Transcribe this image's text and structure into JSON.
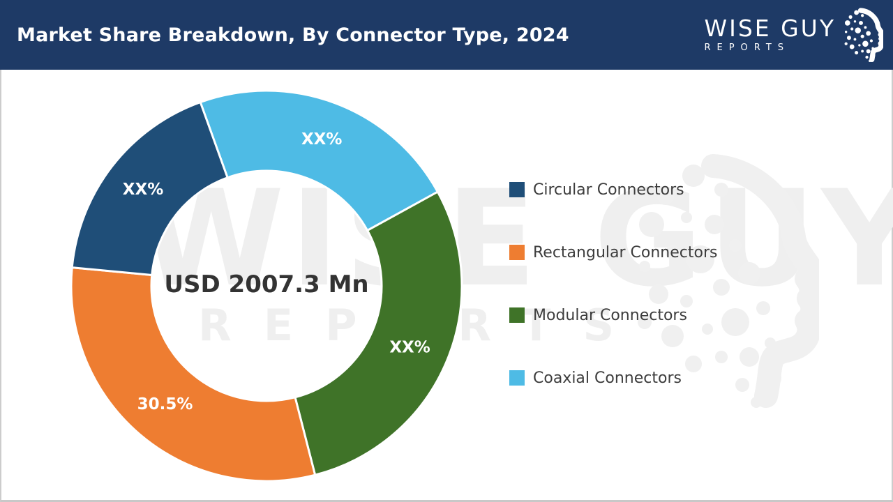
{
  "header": {
    "title": "Market Share Breakdown, By Connector Type, 2024",
    "logo": {
      "line1": "WISE GUY",
      "line2": "REPORTS"
    }
  },
  "watermark": {
    "line1": "WISE GUY",
    "line2": "REPORTS"
  },
  "chart_data": {
    "type": "pie",
    "subtype": "donut",
    "title": "Market Share Breakdown, By Connector Type, 2024",
    "center_label": "USD 2007.3 Mn",
    "start_angle_deg": -19.8,
    "legend_position": "right",
    "segments": [
      {
        "name": "Coaxial Connectors",
        "value": 22.5,
        "display_label": "XX%",
        "color": "#4EBBE5"
      },
      {
        "name": "Modular Connectors",
        "value": 29.0,
        "display_label": "XX%",
        "color": "#3F7328"
      },
      {
        "name": "Rectangular Connectors",
        "value": 30.5,
        "display_label": "30.5%",
        "color": "#EE7D31"
      },
      {
        "name": "Circular Connectors",
        "value": 18.0,
        "display_label": "XX%",
        "color": "#1F4E78"
      }
    ]
  },
  "legend": {
    "items": [
      {
        "label": "Circular Connectors",
        "color": "#1F4E78"
      },
      {
        "label": "Rectangular Connectors",
        "color": "#EE7D31"
      },
      {
        "label": "Modular Connectors",
        "color": "#3F7328"
      },
      {
        "label": "Coaxial Connectors",
        "color": "#4EBBE5"
      }
    ]
  }
}
